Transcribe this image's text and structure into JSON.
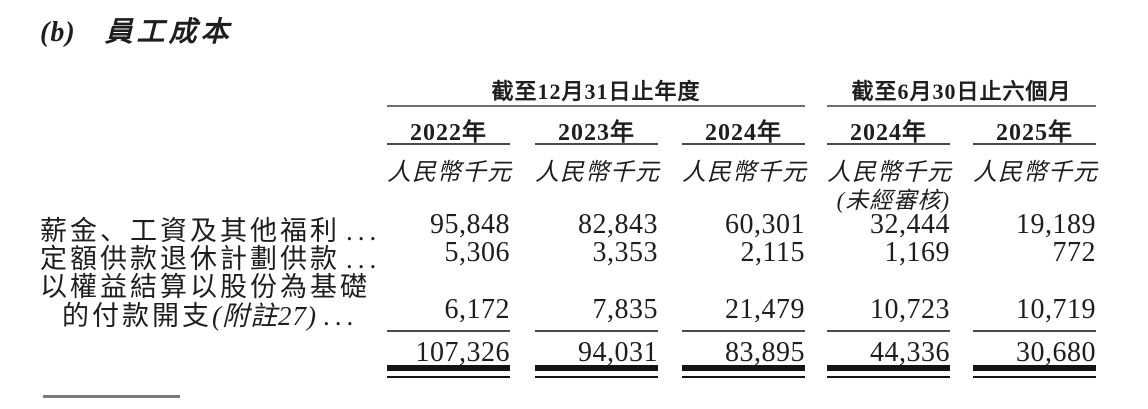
{
  "page": {
    "title_marker": "(b)",
    "title": "員工成本"
  },
  "table": {
    "col_groups": [
      {
        "label": "截至12月31日止年度",
        "span": 3
      },
      {
        "label": "截至6月30日止六個月",
        "span": 2
      }
    ],
    "years": [
      "2022年",
      "2023年",
      "2024年",
      "2024年",
      "2025年"
    ],
    "unit_label": "人民幣千元",
    "unaudited_note": "(未經審核)",
    "rows": [
      {
        "label": "薪金、工資及其他福利",
        "dots": "...",
        "values": [
          "95,848",
          "82,843",
          "60,301",
          "32,444",
          "19,189"
        ]
      },
      {
        "label": "定額供款退休計劃供款",
        "dots": "...",
        "values": [
          "5,306",
          "3,353",
          "2,115",
          "1,169",
          "772"
        ]
      },
      {
        "label_line1": "以權益結算以股份為基礎",
        "label_line2": "的付款開支",
        "note_ref": "(附註27)",
        "dots": "...",
        "values": [
          "6,172",
          "7,835",
          "21,479",
          "10,723",
          "10,719"
        ]
      }
    ],
    "total": {
      "values": [
        "107,326",
        "94,031",
        "83,895",
        "44,336",
        "30,680"
      ]
    }
  }
}
